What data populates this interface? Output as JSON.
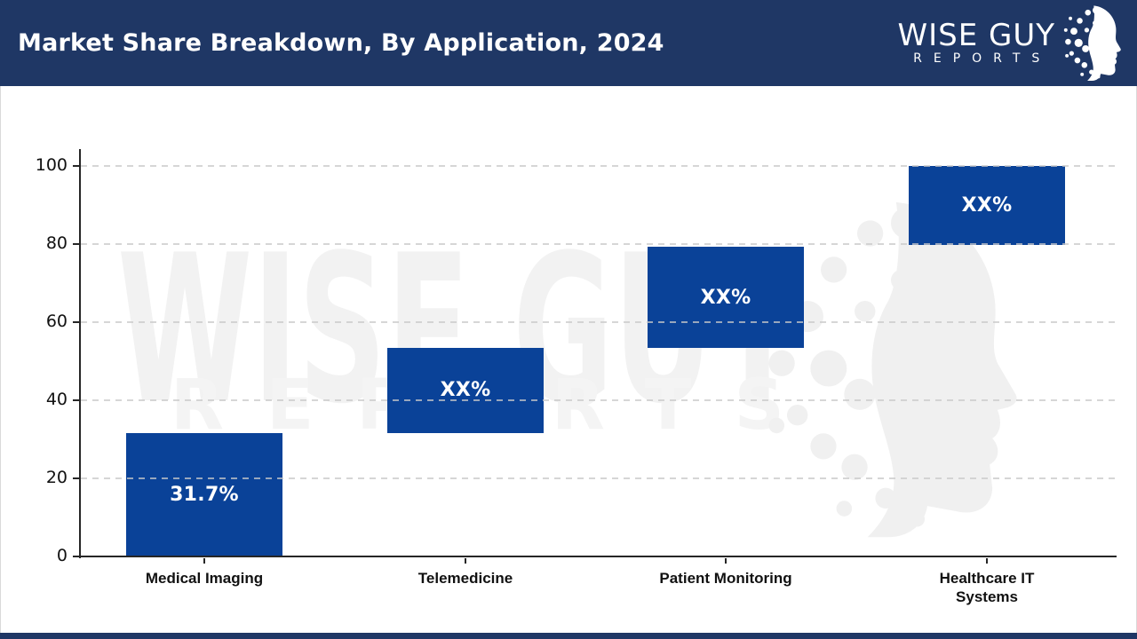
{
  "header": {
    "title": "Market Share Breakdown, By Application, 2024",
    "bg_color": "#1f3765",
    "logo": {
      "line1": "WISE GUY",
      "line2": "REPORTS"
    }
  },
  "watermark": {
    "line1": "WISE GUY",
    "line2": "REPORTS"
  },
  "chart_data": {
    "type": "bar",
    "subtype": "floating-waterfall-segments",
    "title": "Market Share Breakdown, By Application, 2024",
    "categories": [
      "Medical Imaging",
      "Telemedicine",
      "Patient Monitoring",
      "Healthcare IT Systems"
    ],
    "category_label_lines": [
      [
        "Medical Imaging"
      ],
      [
        "Telemedicine"
      ],
      [
        "Patient Monitoring"
      ],
      [
        "Healthcare IT",
        "Systems"
      ]
    ],
    "bars": [
      {
        "category": "Medical Imaging",
        "start": 0,
        "end": 31.7,
        "label": "31.7%"
      },
      {
        "category": "Telemedicine",
        "start": 31.7,
        "end": 53.4,
        "label": "XX%"
      },
      {
        "category": "Patient Monitoring",
        "start": 53.4,
        "end": 79.3,
        "label": "XX%"
      },
      {
        "category": "Healthcare IT Systems",
        "start": 79.8,
        "end": 100,
        "label": "XX%"
      }
    ],
    "xlabel": "",
    "ylabel": "",
    "ylim": [
      0,
      100
    ],
    "yticks": [
      0,
      20,
      40,
      60,
      80,
      100
    ],
    "grid": "horizontal-dashed",
    "legend": "none",
    "bar_color": "#0a4298",
    "bar_label_color": "#ffffff",
    "axis_color": "#262626",
    "gridline_color": "#c9c9c9"
  }
}
